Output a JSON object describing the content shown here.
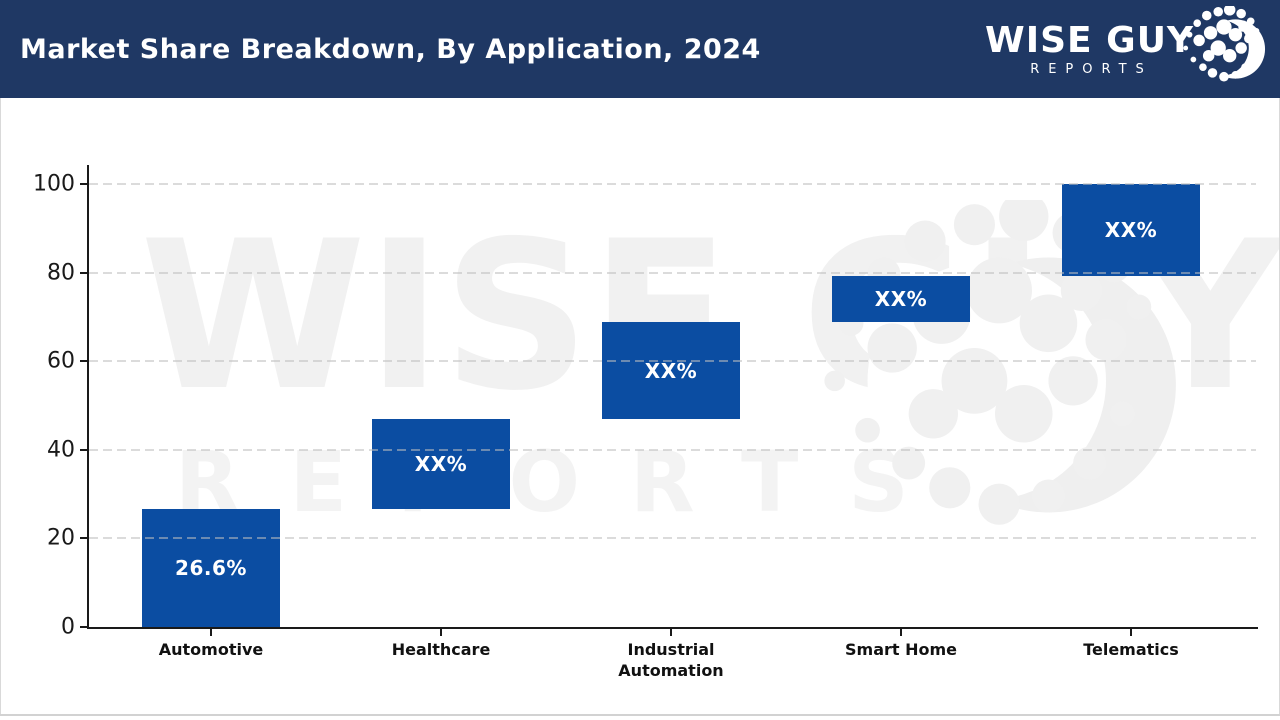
{
  "header": {
    "title": "Market Share Breakdown, By Application, 2024",
    "bg_color": "#1f3864",
    "logo": {
      "line1": "WISE GUY",
      "line2": "REPORTS"
    }
  },
  "watermark": {
    "line1": "WISE GUY",
    "line2": "REPORTS"
  },
  "chart_data": {
    "type": "bar",
    "subtype": "waterfall",
    "title": "Market Share Breakdown, By Application, 2024",
    "xlabel": "",
    "ylabel": "",
    "categories": [
      "Automotive",
      "Healthcare",
      "Industrial Automation",
      "Smart Home",
      "Telematics"
    ],
    "series": [
      {
        "name": "Market Share (%)",
        "starts": [
          0,
          26.6,
          46.9,
          68.9,
          79.2
        ],
        "ends": [
          26.6,
          46.9,
          68.9,
          79.2,
          100
        ]
      }
    ],
    "bar_labels": [
      "26.6%",
      "XX%",
      "XX%",
      "XX%",
      "XX%"
    ],
    "yticks": [
      0,
      20,
      40,
      60,
      80,
      100
    ],
    "ylim": [
      0,
      104.5
    ],
    "grid": "dashed horizontal, drawn over bars",
    "legend": "none",
    "bar_color": "#0b4da2",
    "label_color": "#ffffff"
  }
}
